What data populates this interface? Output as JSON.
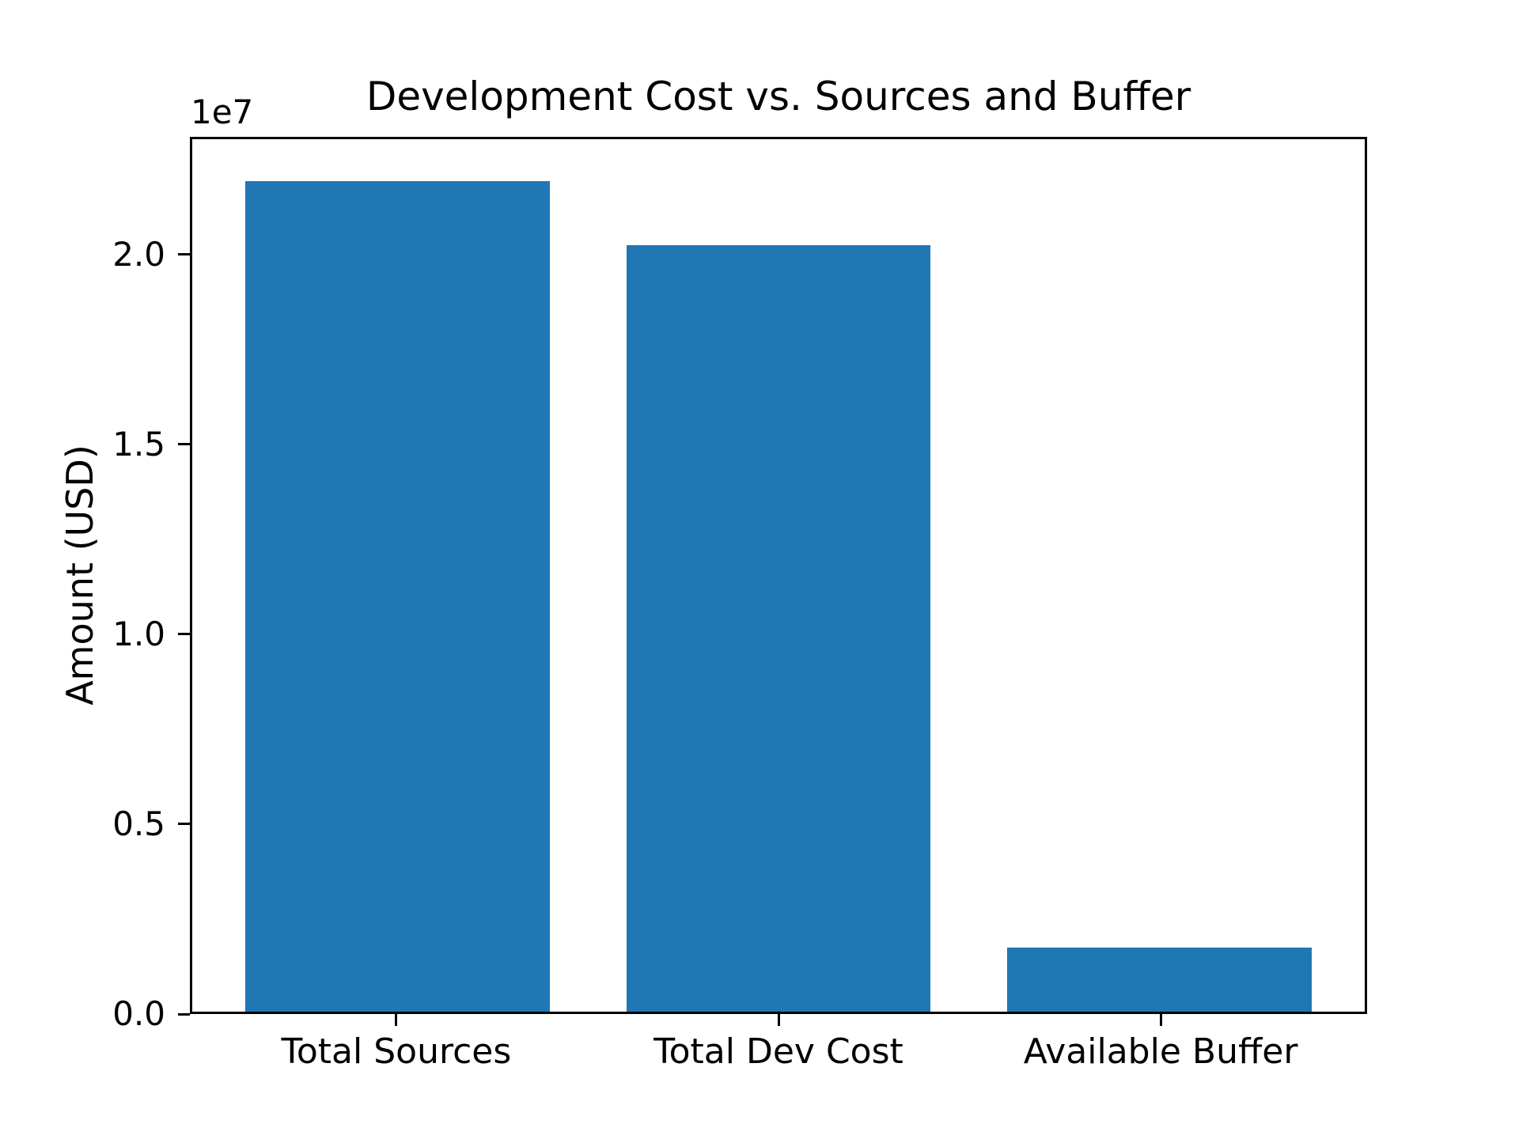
{
  "figure": {
    "background": "#ffffff",
    "text_color": "#000000"
  },
  "chart_data": {
    "type": "bar",
    "title": "Development Cost vs. Sources and Buffer",
    "categories": [
      "Total Sources",
      "Total Dev Cost",
      "Available Buffer"
    ],
    "values": [
      22000000,
      20300000,
      1700000
    ],
    "xlabel": "",
    "ylabel": "Amount (USD)",
    "y_offset_text": "1e7",
    "ylim": [
      0,
      23100000
    ],
    "yticks": [
      0,
      5000000,
      10000000,
      15000000,
      20000000
    ],
    "ytick_labels": [
      "0.0",
      "0.5",
      "1.0",
      "1.5",
      "2.0"
    ],
    "bar_color": "#1f77b4",
    "bar_width_fraction": 0.8,
    "grid": false,
    "legend_position": "none"
  }
}
